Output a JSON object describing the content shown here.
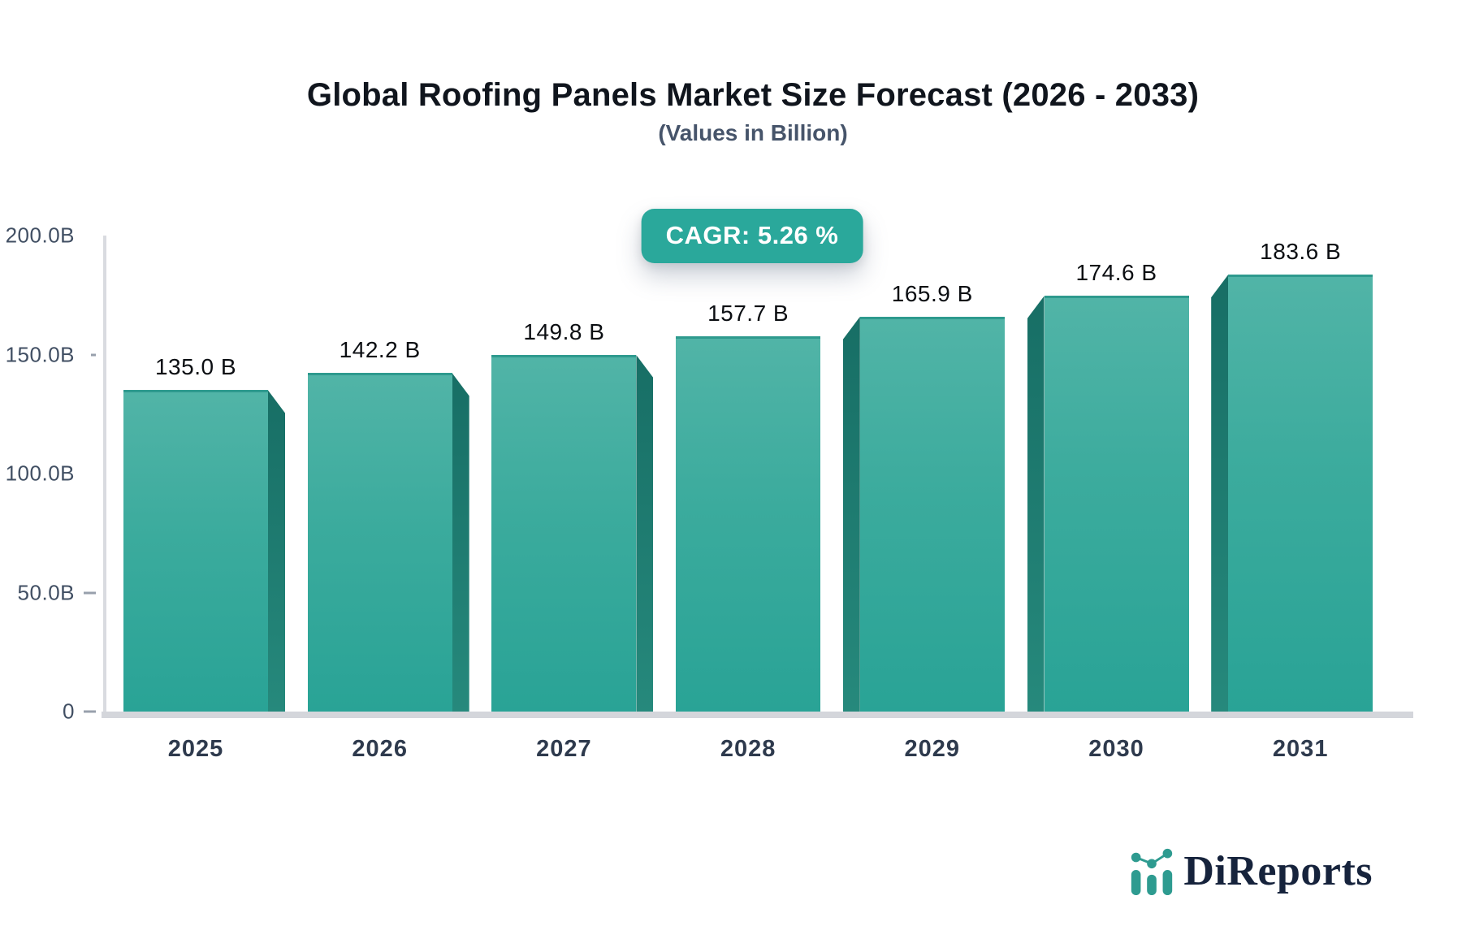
{
  "header": {
    "title": "Global Roofing Panels Market Size Forecast (2026 - 2033)",
    "subtitle": "(Values in Billion)"
  },
  "badge": {
    "label": "CAGR: 5.26 %"
  },
  "chart_data": {
    "type": "bar",
    "title": "Global Roofing Panels Market Size Forecast (2026 - 2033)",
    "subtitle": "(Values in Billion)",
    "cagr_percent": 5.26,
    "categories": [
      "2025",
      "2026",
      "2027",
      "2028",
      "2029",
      "2030",
      "2031"
    ],
    "values": [
      135.0,
      142.2,
      149.8,
      157.7,
      165.9,
      174.6,
      183.6
    ],
    "value_labels": [
      "135.0 B",
      "142.2 B",
      "149.8 B",
      "157.7 B",
      "165.9 B",
      "174.6 B",
      "183.6 B"
    ],
    "xlabel": "",
    "ylabel": "",
    "ylim": [
      0,
      200
    ],
    "yticks": [
      {
        "label": "200.0B",
        "value": 200
      },
      {
        "label": "150.0B",
        "value": 150
      },
      {
        "label": "100.0B",
        "value": 100
      },
      {
        "label": "50.0B",
        "value": 50
      },
      {
        "label": "0",
        "value": 0
      }
    ],
    "grid": false,
    "legend": false,
    "bar_style": "3d-extruded",
    "colors": {
      "bar_face_top": "#51b4a7",
      "bar_face_bottom": "#29a396",
      "bar_side": "#1f7d73",
      "badge_bg": "#2aa89b",
      "axis_line": "#d6d8dd",
      "label_text": "#0b0e12"
    }
  },
  "footer": {
    "logo_text": "DiReports",
    "logo_icon": "bar-line-chart-icon"
  }
}
